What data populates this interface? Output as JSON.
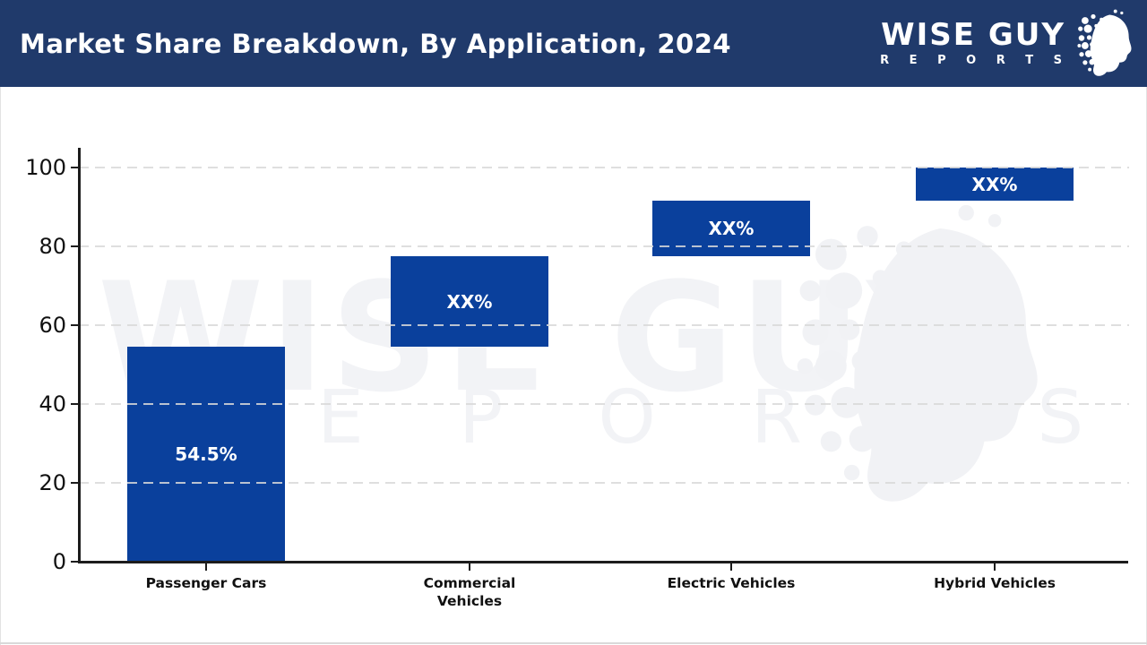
{
  "header": {
    "title": "Market Share Breakdown, By Application, 2024",
    "logo": {
      "line1": "WISE GUY",
      "line2": "R E P O R T S"
    }
  },
  "watermark": {
    "line1": "WISE GUY",
    "line2": "R E P O R T S"
  },
  "colors": {
    "header_bg": "#203a6b",
    "bar": "#0a409c",
    "bar_label": "#ffffff",
    "axis": "#1c1c1c",
    "gridline": "#d9d9d9",
    "watermark": "#f2f3f6"
  },
  "chart_data": {
    "type": "bar",
    "subtype": "waterfall",
    "title": "Market Share Breakdown, By Application, 2024",
    "categories": [
      "Passenger Cars",
      "Commercial Vehicles",
      "Electric Vehicles",
      "Hybrid Vehicles"
    ],
    "segments": [
      {
        "category": "Passenger Cars",
        "start": 0,
        "end": 54.5,
        "label": "54.5%"
      },
      {
        "category": "Commercial Vehicles",
        "start": 54.5,
        "end": 77.5,
        "label": "XX%"
      },
      {
        "category": "Electric Vehicles",
        "start": 77.5,
        "end": 91.5,
        "label": "XX%"
      },
      {
        "category": "Hybrid Vehicles",
        "start": 91.5,
        "end": 100,
        "label": "XX%"
      }
    ],
    "xlabel": "",
    "ylabel": "",
    "ylim": [
      0,
      100
    ],
    "yticks": [
      0,
      20,
      40,
      60,
      80,
      100
    ],
    "grid": "dashed-horizontal",
    "legend": "none"
  }
}
